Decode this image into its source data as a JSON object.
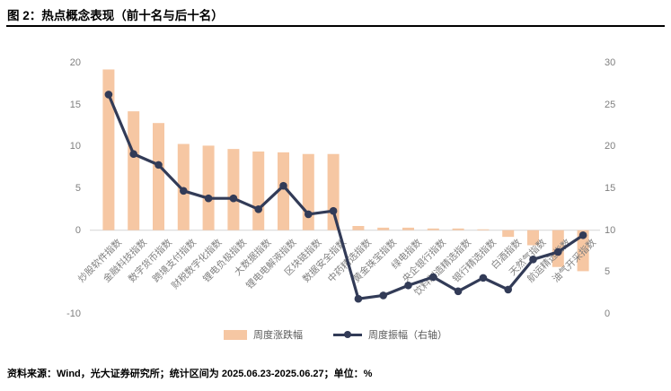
{
  "header": {
    "title": "图 2：热点概念表现（前十名与后十名）"
  },
  "chart_data": {
    "type": "bar",
    "subtype": "bar-line-combo",
    "title": "图 2：热点概念表现（前十名与后十名）",
    "categories": [
      "炒股软件指数",
      "金融科技指数",
      "数字货币指数",
      "跨境支付指数",
      "财税数字化指数",
      "锂电负极指数",
      "大数据指数",
      "锂电电解液指数",
      "区块链指数",
      "数据安全指数",
      "中药精选指数",
      "黄金珠宝指数",
      "绿电指数",
      "央企银行指数",
      "饮料制造精选指数",
      "银行精选指数",
      "白酒指数",
      "天然气指数",
      "航运精选指数",
      "油气开采指数"
    ],
    "series": [
      {
        "name": "周度涨跌幅",
        "type": "bar",
        "axis": "left",
        "color": "#F6C7A3",
        "values": [
          19.2,
          14.2,
          12.8,
          10.3,
          10.1,
          9.7,
          9.4,
          9.3,
          9.1,
          9.1,
          0.5,
          0.3,
          0.3,
          0.2,
          0.2,
          0.1,
          -0.8,
          -1.8,
          -4.4,
          -4.9
        ]
      },
      {
        "name": "周度振幅（右轴）",
        "type": "line",
        "axis": "right",
        "color": "#323B57",
        "values": [
          26.2,
          19.1,
          17.8,
          14.7,
          13.8,
          13.8,
          12.5,
          15.3,
          11.9,
          12.3,
          1.8,
          2.2,
          3.4,
          4.4,
          2.7,
          4.3,
          2.9,
          6.5,
          7.4,
          9.4
        ]
      }
    ],
    "left_axis": {
      "min": -10,
      "max": 20,
      "ticks": [
        20,
        15,
        10,
        5,
        0,
        -10
      ]
    },
    "right_axis": {
      "min": 0,
      "max": 30,
      "ticks": [
        30,
        25,
        20,
        15,
        10,
        5,
        0
      ]
    },
    "grid": "zero-baseline-only",
    "legend_position": "bottom",
    "unit": "%"
  },
  "legend": {
    "bar_label": "周度涨跌幅",
    "line_label": "周度振幅（右轴）"
  },
  "footer": {
    "source": "资料来源：Wind，光大证券研究所；统计区间为 2025.06.23-2025.06.27；单位：%"
  },
  "colors": {
    "bar": "#F6C7A3",
    "line": "#323B57",
    "axis_text": "#7f7f7f",
    "zero_line": "#d9d9d9"
  }
}
